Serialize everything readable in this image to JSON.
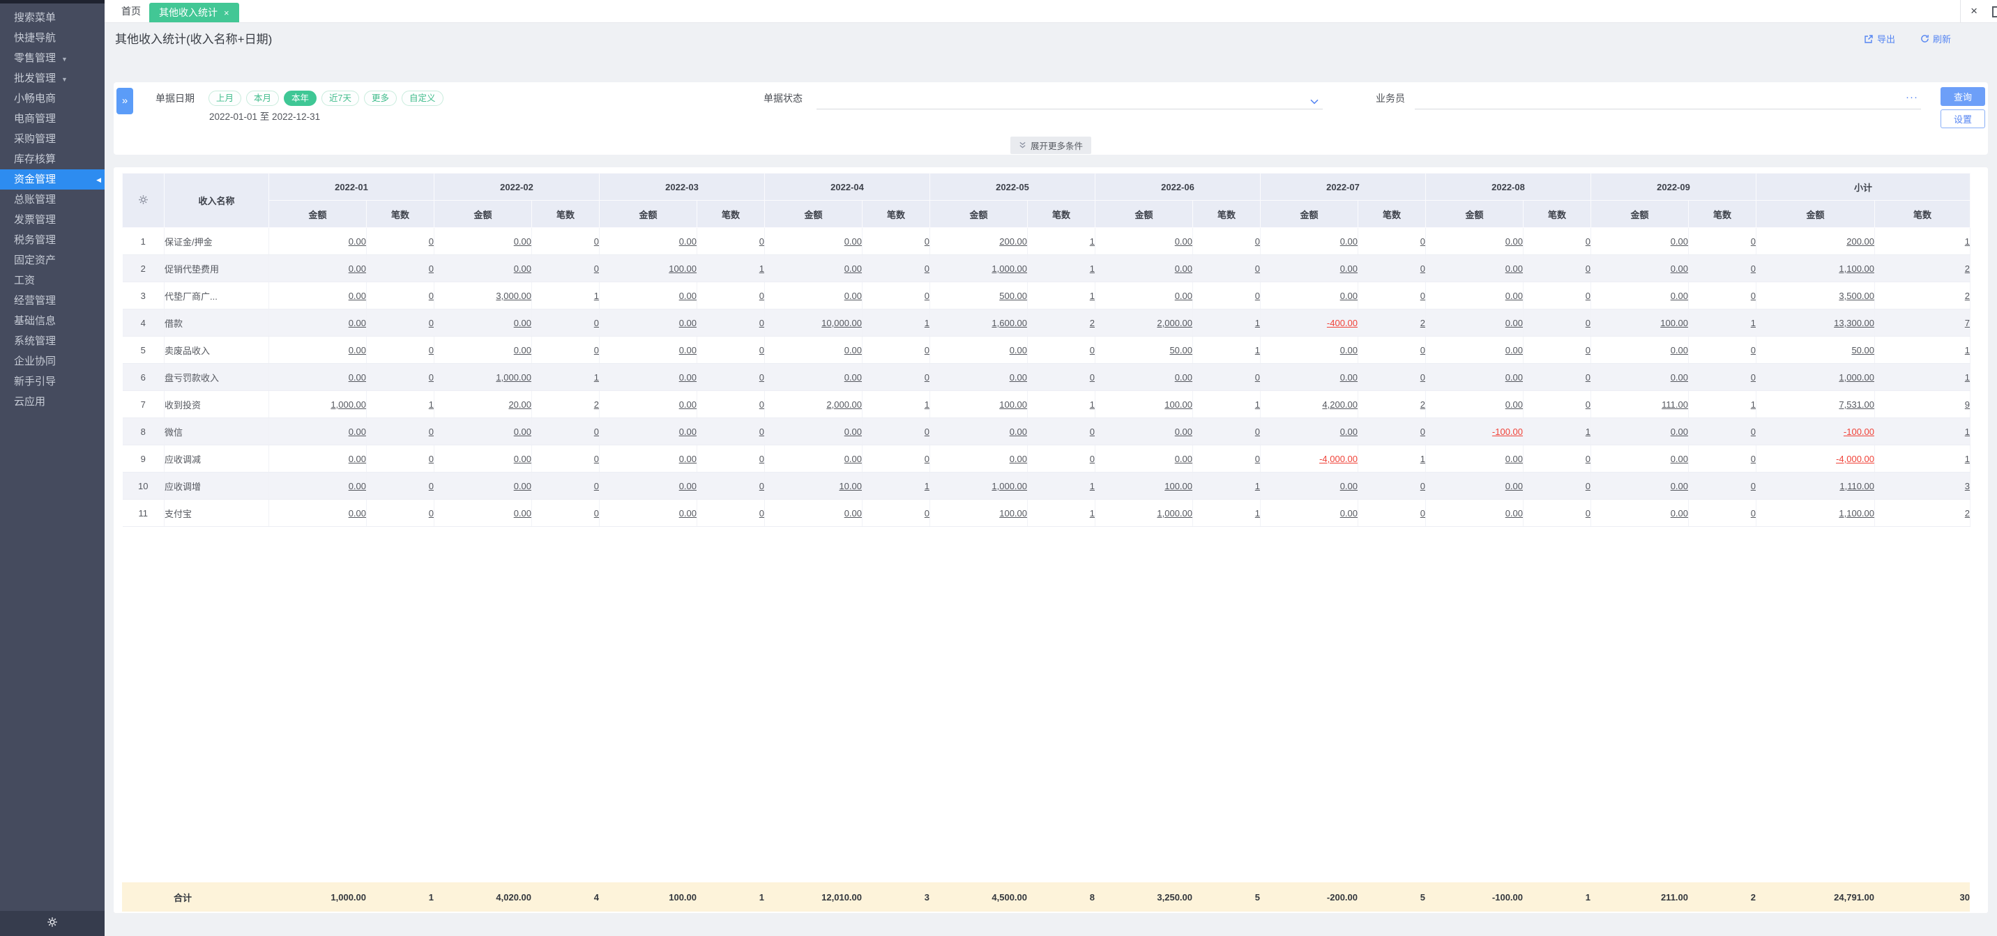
{
  "sidebar": {
    "items": [
      {
        "label": "搜索菜单"
      },
      {
        "label": "快捷导航"
      },
      {
        "label": "零售管理",
        "caret": true
      },
      {
        "label": "批发管理",
        "caret": true
      },
      {
        "label": "小畅电商"
      },
      {
        "label": "电商管理"
      },
      {
        "label": "采购管理"
      },
      {
        "label": "库存核算"
      },
      {
        "label": "资金管理",
        "active": true
      },
      {
        "label": "总账管理"
      },
      {
        "label": "发票管理"
      },
      {
        "label": "税务管理"
      },
      {
        "label": "固定资产"
      },
      {
        "label": "工资"
      },
      {
        "label": "经营管理"
      },
      {
        "label": "基础信息"
      },
      {
        "label": "系统管理"
      },
      {
        "label": "企业协同"
      },
      {
        "label": "新手引导"
      },
      {
        "label": "云应用"
      }
    ]
  },
  "tabs": {
    "home": "首页",
    "active": "其他收入统计"
  },
  "page": {
    "title": "其他收入统计(收入名称+日期)",
    "export_label": "导出",
    "refresh_label": "刷新"
  },
  "filters": {
    "date_label": "单据日期",
    "date_pills": [
      {
        "label": "上月"
      },
      {
        "label": "本月"
      },
      {
        "label": "本年",
        "active": true
      },
      {
        "label": "近7天"
      },
      {
        "label": "更多"
      },
      {
        "label": "自定义"
      }
    ],
    "date_range": "2022-01-01 至 2022-12-31",
    "status_label": "单据状态",
    "status_value": "",
    "salesperson_label": "业务员",
    "salesperson_value": "",
    "query_button": "查询",
    "settings_button": "设置",
    "expand_more": "展开更多条件"
  },
  "table": {
    "name_header": "收入名称",
    "amount_header": "金额",
    "count_header": "笔数",
    "subtotal_header": "小计",
    "columns": [
      "2022-01",
      "2022-02",
      "2022-03",
      "2022-04",
      "2022-05",
      "2022-06",
      "2022-07",
      "2022-08",
      "2022-09"
    ],
    "rows": [
      {
        "index": "1",
        "name": "保证金/押金",
        "cells": [
          [
            "0.00",
            "0"
          ],
          [
            "0.00",
            "0"
          ],
          [
            "0.00",
            "0"
          ],
          [
            "0.00",
            "0"
          ],
          [
            "200.00",
            "1"
          ],
          [
            "0.00",
            "0"
          ],
          [
            "0.00",
            "0"
          ],
          [
            "0.00",
            "0"
          ],
          [
            "0.00",
            "0"
          ]
        ],
        "subtotal": [
          "200.00",
          "1"
        ]
      },
      {
        "index": "2",
        "name": "促销代垫费用",
        "cells": [
          [
            "0.00",
            "0"
          ],
          [
            "0.00",
            "0"
          ],
          [
            "100.00",
            "1"
          ],
          [
            "0.00",
            "0"
          ],
          [
            "1,000.00",
            "1"
          ],
          [
            "0.00",
            "0"
          ],
          [
            "0.00",
            "0"
          ],
          [
            "0.00",
            "0"
          ],
          [
            "0.00",
            "0"
          ]
        ],
        "subtotal": [
          "1,100.00",
          "2"
        ]
      },
      {
        "index": "3",
        "name": "代垫厂商广...",
        "cells": [
          [
            "0.00",
            "0"
          ],
          [
            "3,000.00",
            "1"
          ],
          [
            "0.00",
            "0"
          ],
          [
            "0.00",
            "0"
          ],
          [
            "500.00",
            "1"
          ],
          [
            "0.00",
            "0"
          ],
          [
            "0.00",
            "0"
          ],
          [
            "0.00",
            "0"
          ],
          [
            "0.00",
            "0"
          ]
        ],
        "subtotal": [
          "3,500.00",
          "2"
        ]
      },
      {
        "index": "4",
        "name": "借款",
        "cells": [
          [
            "0.00",
            "0"
          ],
          [
            "0.00",
            "0"
          ],
          [
            "0.00",
            "0"
          ],
          [
            "10,000.00",
            "1"
          ],
          [
            "1,600.00",
            "2"
          ],
          [
            "2,000.00",
            "1"
          ],
          [
            "-400.00",
            "2"
          ],
          [
            "0.00",
            "0"
          ],
          [
            "100.00",
            "1"
          ]
        ],
        "subtotal": [
          "13,300.00",
          "7"
        ]
      },
      {
        "index": "5",
        "name": "卖废品收入",
        "cells": [
          [
            "0.00",
            "0"
          ],
          [
            "0.00",
            "0"
          ],
          [
            "0.00",
            "0"
          ],
          [
            "0.00",
            "0"
          ],
          [
            "0.00",
            "0"
          ],
          [
            "50.00",
            "1"
          ],
          [
            "0.00",
            "0"
          ],
          [
            "0.00",
            "0"
          ],
          [
            "0.00",
            "0"
          ]
        ],
        "subtotal": [
          "50.00",
          "1"
        ]
      },
      {
        "index": "6",
        "name": "盘亏罚款收入",
        "cells": [
          [
            "0.00",
            "0"
          ],
          [
            "1,000.00",
            "1"
          ],
          [
            "0.00",
            "0"
          ],
          [
            "0.00",
            "0"
          ],
          [
            "0.00",
            "0"
          ],
          [
            "0.00",
            "0"
          ],
          [
            "0.00",
            "0"
          ],
          [
            "0.00",
            "0"
          ],
          [
            "0.00",
            "0"
          ]
        ],
        "subtotal": [
          "1,000.00",
          "1"
        ]
      },
      {
        "index": "7",
        "name": "收到投资",
        "cells": [
          [
            "1,000.00",
            "1"
          ],
          [
            "20.00",
            "2"
          ],
          [
            "0.00",
            "0"
          ],
          [
            "2,000.00",
            "1"
          ],
          [
            "100.00",
            "1"
          ],
          [
            "100.00",
            "1"
          ],
          [
            "4,200.00",
            "2"
          ],
          [
            "0.00",
            "0"
          ],
          [
            "111.00",
            "1"
          ]
        ],
        "subtotal": [
          "7,531.00",
          "9"
        ]
      },
      {
        "index": "8",
        "name": "微信",
        "cells": [
          [
            "0.00",
            "0"
          ],
          [
            "0.00",
            "0"
          ],
          [
            "0.00",
            "0"
          ],
          [
            "0.00",
            "0"
          ],
          [
            "0.00",
            "0"
          ],
          [
            "0.00",
            "0"
          ],
          [
            "0.00",
            "0"
          ],
          [
            "-100.00",
            "1"
          ],
          [
            "0.00",
            "0"
          ]
        ],
        "subtotal": [
          "-100.00",
          "1"
        ]
      },
      {
        "index": "9",
        "name": "应收调减",
        "cells": [
          [
            "0.00",
            "0"
          ],
          [
            "0.00",
            "0"
          ],
          [
            "0.00",
            "0"
          ],
          [
            "0.00",
            "0"
          ],
          [
            "0.00",
            "0"
          ],
          [
            "0.00",
            "0"
          ],
          [
            "-4,000.00",
            "1"
          ],
          [
            "0.00",
            "0"
          ],
          [
            "0.00",
            "0"
          ]
        ],
        "subtotal": [
          "-4,000.00",
          "1"
        ]
      },
      {
        "index": "10",
        "name": "应收调增",
        "cells": [
          [
            "0.00",
            "0"
          ],
          [
            "0.00",
            "0"
          ],
          [
            "0.00",
            "0"
          ],
          [
            "10.00",
            "1"
          ],
          [
            "1,000.00",
            "1"
          ],
          [
            "100.00",
            "1"
          ],
          [
            "0.00",
            "0"
          ],
          [
            "0.00",
            "0"
          ],
          [
            "0.00",
            "0"
          ]
        ],
        "subtotal": [
          "1,110.00",
          "3"
        ]
      },
      {
        "index": "11",
        "name": "支付宝",
        "cells": [
          [
            "0.00",
            "0"
          ],
          [
            "0.00",
            "0"
          ],
          [
            "0.00",
            "0"
          ],
          [
            "0.00",
            "0"
          ],
          [
            "100.00",
            "1"
          ],
          [
            "1,000.00",
            "1"
          ],
          [
            "0.00",
            "0"
          ],
          [
            "0.00",
            "0"
          ],
          [
            "0.00",
            "0"
          ]
        ],
        "subtotal": [
          "1,100.00",
          "2"
        ]
      }
    ],
    "footer": {
      "label": "合计",
      "cells": [
        [
          "1,000.00",
          "1"
        ],
        [
          "4,020.00",
          "4"
        ],
        [
          "100.00",
          "1"
        ],
        [
          "12,010.00",
          "3"
        ],
        [
          "4,500.00",
          "8"
        ],
        [
          "3,250.00",
          "5"
        ],
        [
          "-200.00",
          "5"
        ],
        [
          "-100.00",
          "1"
        ],
        [
          "211.00",
          "2"
        ]
      ],
      "subtotal": [
        "24,791.00",
        "30"
      ]
    }
  },
  "colors": {
    "sidebar_bg": "#454b5e",
    "sidebar_active": "#2d8cf0",
    "tab_active_green": "#42c795",
    "pill_active_green": "#3fc795",
    "primary_button_blue": "#6d9ff8",
    "link_blue": "#5585f2",
    "negative_red": "#f04238",
    "table_header_bg": "#e9ecf5",
    "total_row_bg": "#fdf3da"
  }
}
